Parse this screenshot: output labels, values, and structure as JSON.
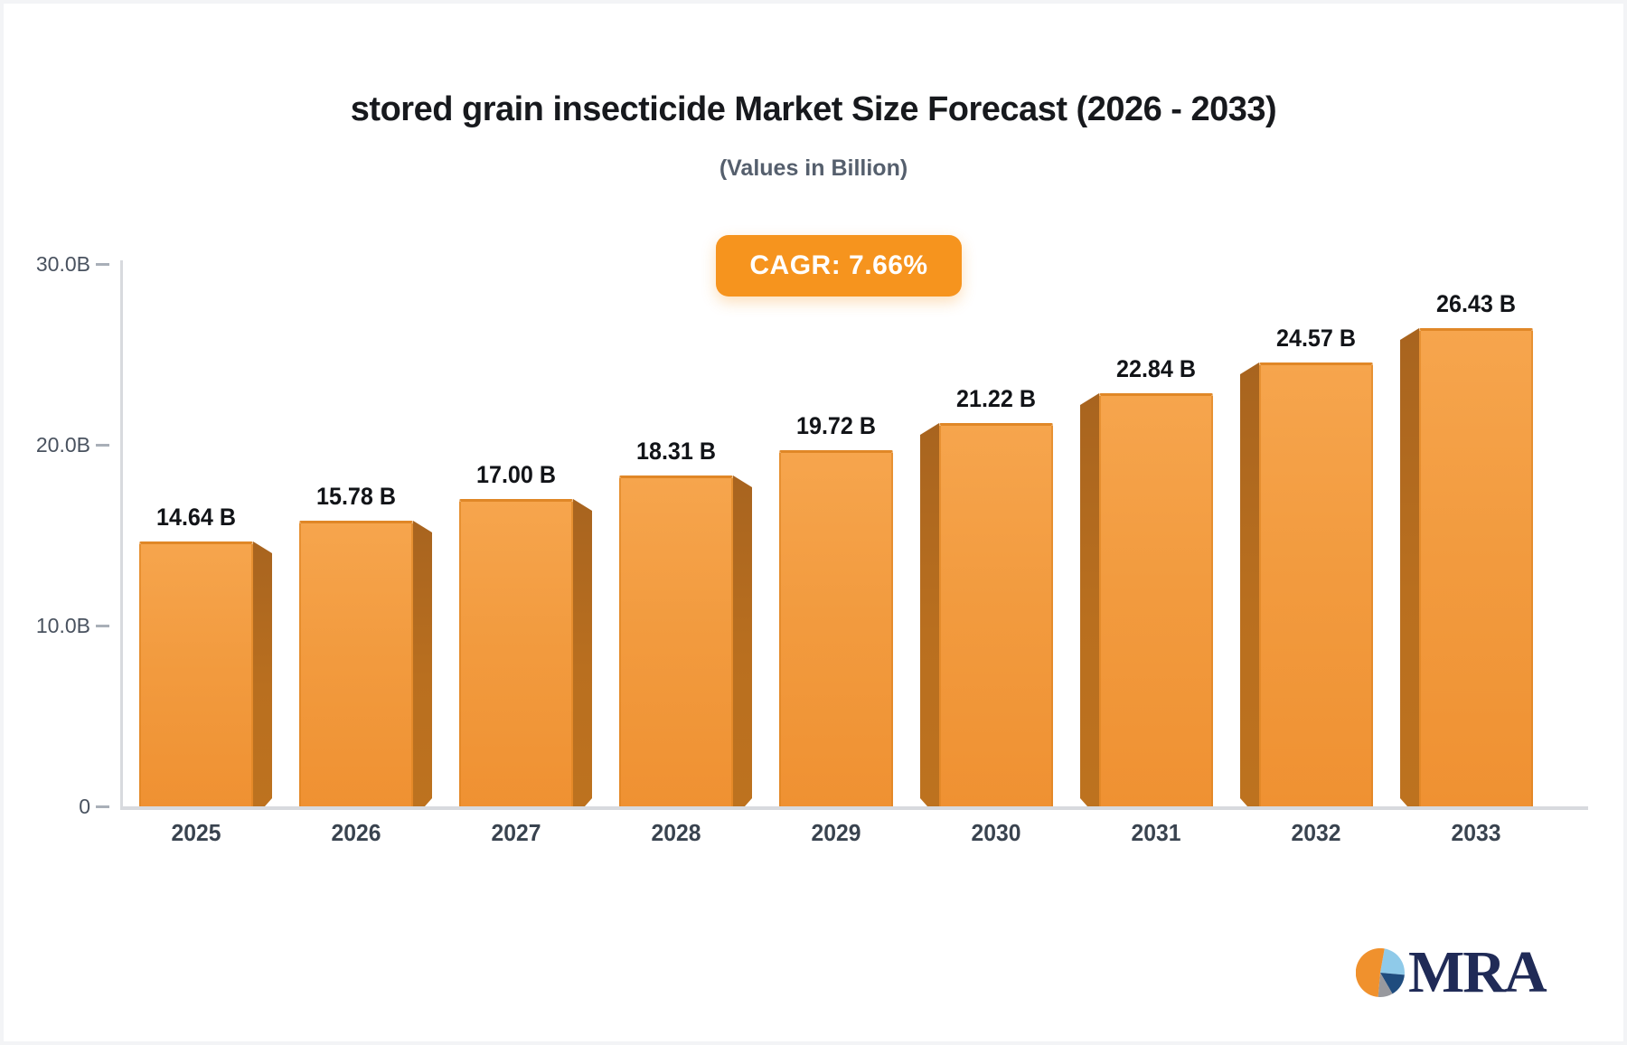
{
  "header": {
    "title": "stored grain insecticide Market Size Forecast (2026 - 2033)",
    "subtitle": "(Values in Billion)",
    "cagr_label": "CAGR: 7.66%"
  },
  "chart_data": {
    "type": "bar",
    "title": "stored grain insecticide Market Size Forecast (2026 - 2033)",
    "subtitle": "(Values in Billion)",
    "cagr_percent": 7.66,
    "categories": [
      "2025",
      "2026",
      "2027",
      "2028",
      "2029",
      "2030",
      "2031",
      "2032",
      "2033"
    ],
    "values": [
      14.64,
      15.78,
      17.0,
      18.31,
      19.72,
      21.22,
      22.84,
      24.57,
      26.43
    ],
    "bar_labels": [
      "14.64 B",
      "15.78 B",
      "17.00 B",
      "18.31 B",
      "19.72 B",
      "21.22 B",
      "22.84 B",
      "24.57 B",
      "26.43 B"
    ],
    "unit": "Billion",
    "ylim": [
      0,
      30
    ],
    "y_ticks": [
      {
        "label": "0",
        "value": 0
      },
      {
        "label": "10.0B",
        "value": 10
      },
      {
        "label": "20.0B",
        "value": 20
      },
      {
        "label": "30.0B",
        "value": 30
      }
    ],
    "grid": "off",
    "legend": "none",
    "colors": {
      "bar_top": "#f6a54d",
      "bar_bottom": "#ef9132",
      "bar_side": "#b96f1f",
      "badge": "#f6941e",
      "axis_line": "#d8dade",
      "tick_text": "#49525f",
      "value_text": "#121418"
    }
  },
  "logo": {
    "text": "MRA",
    "pie": {
      "orange": "#f0912d",
      "lightblue": "#8fcae9",
      "navy": "#1f4c7e",
      "gray": "#98999e"
    }
  }
}
